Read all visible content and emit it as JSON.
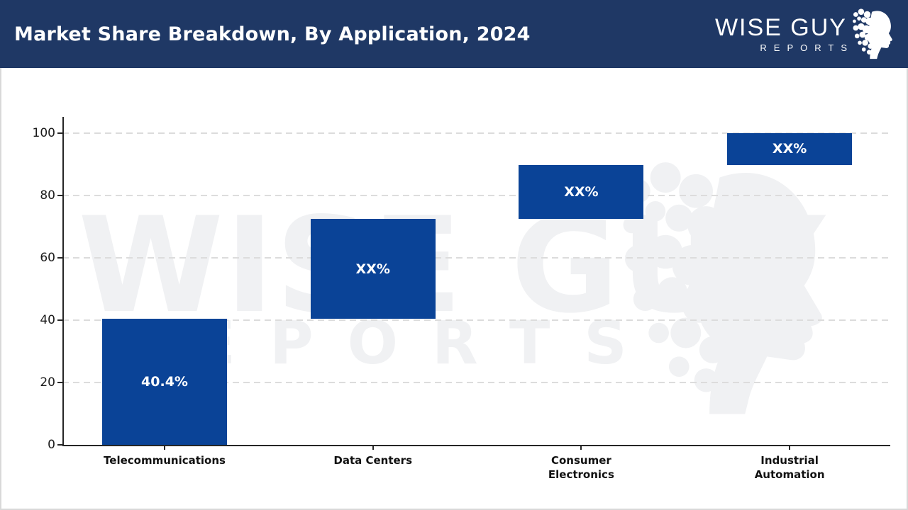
{
  "header": {
    "title": "Market Share Breakdown, By Application, 2024",
    "logo": {
      "brand_top": "WISE GUY",
      "brand_bottom": "REPORTS"
    }
  },
  "watermark": {
    "text_primary": "WISE GUY",
    "text_secondary": "REPORTS"
  },
  "chart_data": {
    "type": "bar",
    "variant": "waterfall",
    "title": "Market Share Breakdown, By Application, 2024",
    "categories": [
      "Telecommunications",
      "Data Centers",
      "Consumer\nElectronics",
      "Industrial\nAutomation"
    ],
    "segments": [
      {
        "category": "Telecommunications",
        "start": 0,
        "end": 40.4,
        "increment": 40.4,
        "label": "40.4%"
      },
      {
        "category": "Data Centers",
        "start": 40.4,
        "end": 72.4,
        "increment": 32.0,
        "label": "XX%"
      },
      {
        "category": "Consumer Electronics",
        "start": 72.4,
        "end": 89.6,
        "increment": 17.2,
        "label": "XX%"
      },
      {
        "category": "Industrial Automation",
        "start": 89.6,
        "end": 100,
        "increment": 10.4,
        "label": "XX%"
      }
    ],
    "xlabel": "",
    "ylabel": "",
    "yticks": [
      0,
      20,
      40,
      60,
      80,
      100
    ],
    "ylim": [
      0,
      105
    ],
    "grid": "horizontal-dashed",
    "legend": "none",
    "colors": {
      "bar": "#0a4397",
      "bar_label": "#ffffff",
      "axis": "#262626",
      "grid": "#dcdcdc",
      "header_bg": "#1f3865",
      "header_text": "#ffffff",
      "watermark": "#f0f1f3"
    }
  }
}
